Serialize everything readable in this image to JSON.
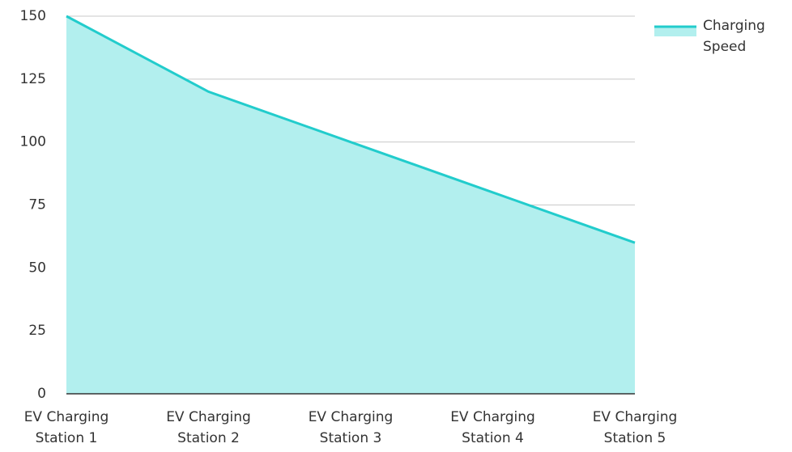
{
  "chart_data": {
    "type": "area",
    "categories": [
      "EV Charging Station 1",
      "EV Charging Station 2",
      "EV Charging Station 3",
      "EV Charging Station 4",
      "EV Charging Station 5"
    ],
    "series": [
      {
        "name": "Charging Speed",
        "color": "#22cccc",
        "fill": "#b2efee",
        "values": [
          150,
          120,
          100,
          80,
          60
        ]
      }
    ],
    "ylim": [
      0,
      150
    ],
    "yticks": [
      0,
      25,
      50,
      75,
      100,
      125,
      150
    ],
    "grid": true,
    "legend": "top-right"
  }
}
